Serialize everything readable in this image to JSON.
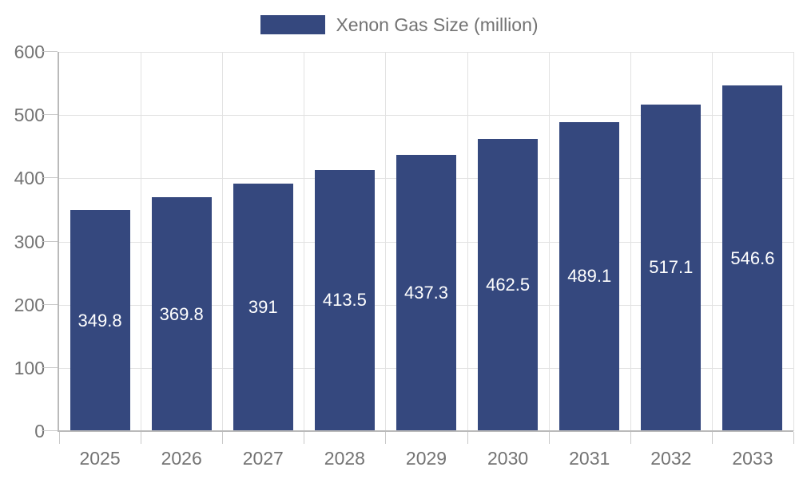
{
  "legend": {
    "label": "Xenon Gas Size (million)"
  },
  "colors": {
    "bar": "#35487e",
    "text": "#737373",
    "axis_line": "#bababa",
    "gridline": "#e2e2e2",
    "tick": "#c9c9c9",
    "value_label": "#ffffff",
    "background": "#ffffff"
  },
  "chart_data": {
    "type": "bar",
    "title": "",
    "categories": [
      "2025",
      "2026",
      "2027",
      "2028",
      "2029",
      "2030",
      "2031",
      "2032",
      "2033"
    ],
    "series": [
      {
        "name": "Xenon Gas Size (million)",
        "values": [
          349.8,
          369.8,
          391,
          413.5,
          437.3,
          462.5,
          489.1,
          517.1,
          546.6
        ]
      }
    ],
    "value_labels": [
      "349.8",
      "369.8",
      "391",
      "413.5",
      "437.3",
      "462.5",
      "489.1",
      "517.1",
      "546.6"
    ],
    "xlabel": "",
    "ylabel": "",
    "ylim": [
      0,
      600
    ],
    "y_ticks": [
      0,
      100,
      200,
      300,
      400,
      500,
      600
    ],
    "grid": true,
    "legend_position": "top-center",
    "value_label_position": "inside-center"
  }
}
